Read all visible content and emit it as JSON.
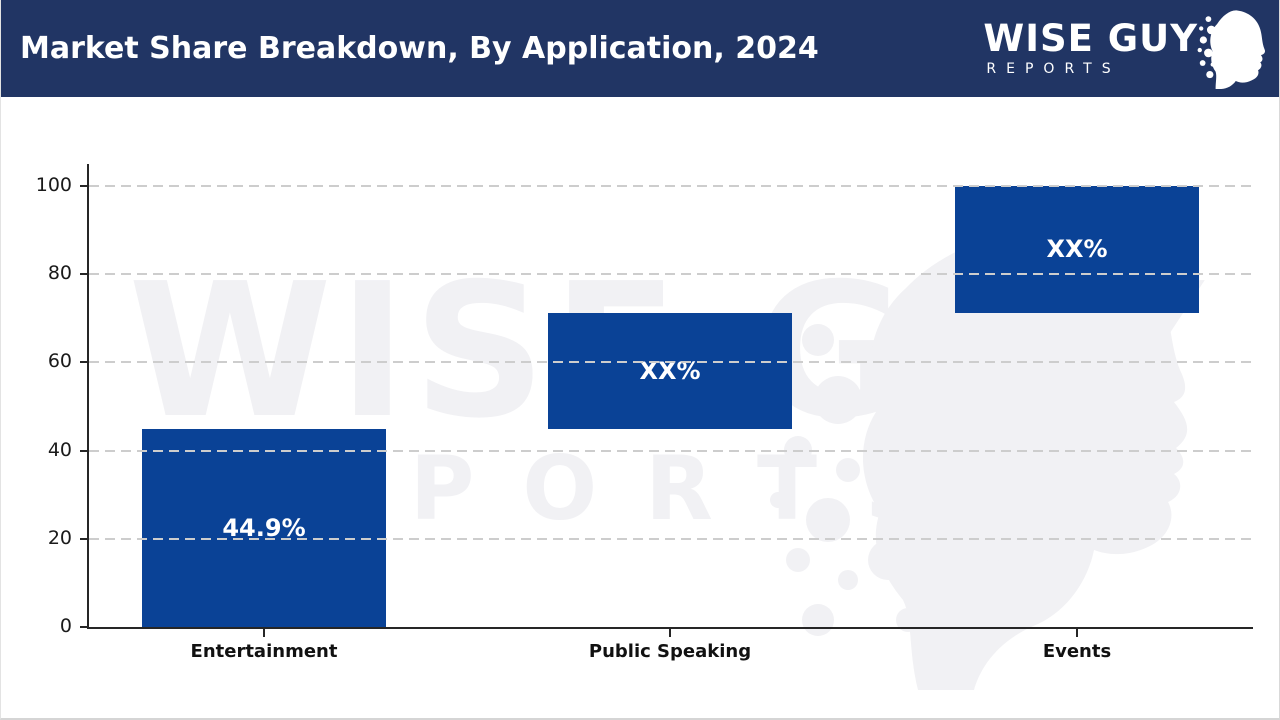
{
  "page": {
    "background": "#ffffff",
    "border_color": "#d9d9d9"
  },
  "header": {
    "background_color": "#213564",
    "title": "Market Share Breakdown, By Application, 2024",
    "logo": {
      "primary": "WISE GUY",
      "secondary": "REPORTS"
    }
  },
  "watermark": {
    "primary": "WISE GUY",
    "secondary": "REPORTS",
    "color": "#f1f1f4"
  },
  "chart_data": {
    "type": "bar",
    "variant": "waterfall",
    "title": "Market Share Breakdown, By Application, 2024",
    "categories": [
      "Entertainment",
      "Public Speaking",
      "Events"
    ],
    "series": [
      {
        "name": "Market Share",
        "segments": [
          {
            "category": "Entertainment",
            "start": 0,
            "end": 44.9,
            "label": "44.9%"
          },
          {
            "category": "Public Speaking",
            "start": 44.9,
            "end": 71.3,
            "label": "XX%"
          },
          {
            "category": "Events",
            "start": 71.3,
            "end": 100,
            "label": "XX%"
          }
        ]
      }
    ],
    "xlabel": "",
    "ylabel": "",
    "yticks": [
      0,
      20,
      40,
      60,
      80,
      100
    ],
    "ylim": [
      0,
      105
    ],
    "grid": {
      "axis": "y",
      "style": "dashed",
      "color": "#cdcdcd"
    },
    "bar_color": "#0A4296",
    "bar_label_color": "#ffffff",
    "axis_color": "#262626",
    "legend": null
  }
}
